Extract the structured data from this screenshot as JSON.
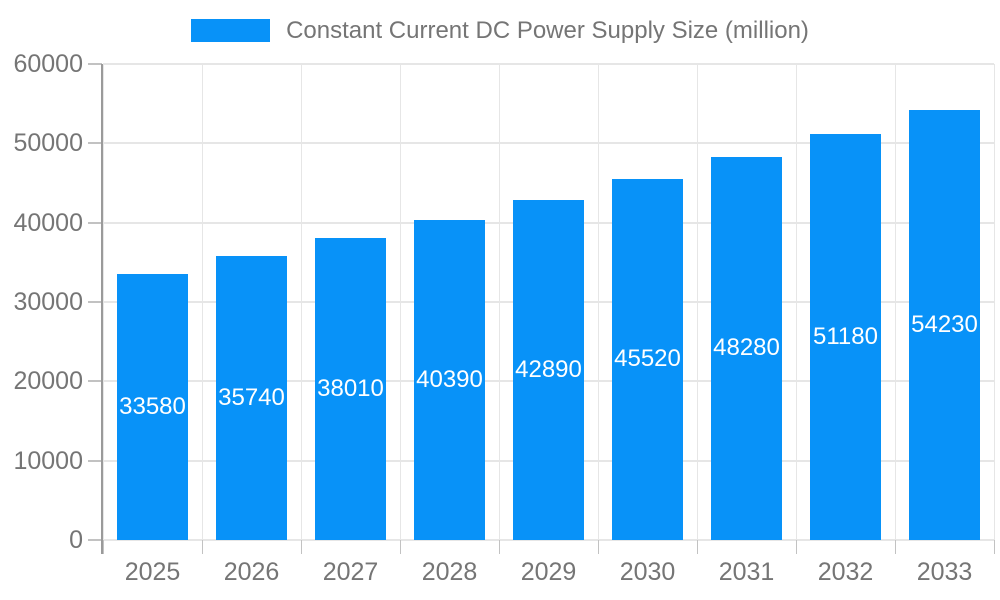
{
  "chart_data": {
    "type": "bar",
    "title": "",
    "legend_label": "Constant Current DC Power Supply Size (million)",
    "legend_position": "top",
    "categories": [
      "2025",
      "2026",
      "2027",
      "2028",
      "2029",
      "2030",
      "2031",
      "2032",
      "2033"
    ],
    "series": [
      {
        "name": "Constant Current DC Power Supply Size (million)",
        "values": [
          33580,
          35740,
          38010,
          40390,
          42890,
          45520,
          48280,
          51180,
          54230
        ],
        "color": "#0892f8"
      }
    ],
    "bar_value_labels": [
      "33580",
      "35740",
      "38010",
      "40390",
      "42890",
      "45520",
      "48280",
      "51180",
      "54230"
    ],
    "xlabel": "",
    "ylabel": "",
    "ylim": [
      0,
      60000
    ],
    "yticks": [
      0,
      10000,
      20000,
      30000,
      40000,
      50000,
      60000
    ],
    "ytick_labels": [
      "0",
      "10000",
      "20000",
      "30000",
      "40000",
      "50000",
      "60000"
    ],
    "grid": true
  },
  "colors": {
    "background": "#ffffff",
    "bar": "#0892f8",
    "grid_line": "#e6e6e6",
    "axis_line": "#9a9a9a",
    "tick_mark": "#c2c2c2",
    "label_text": "#757575",
    "bar_label_text": "#ffffff"
  }
}
